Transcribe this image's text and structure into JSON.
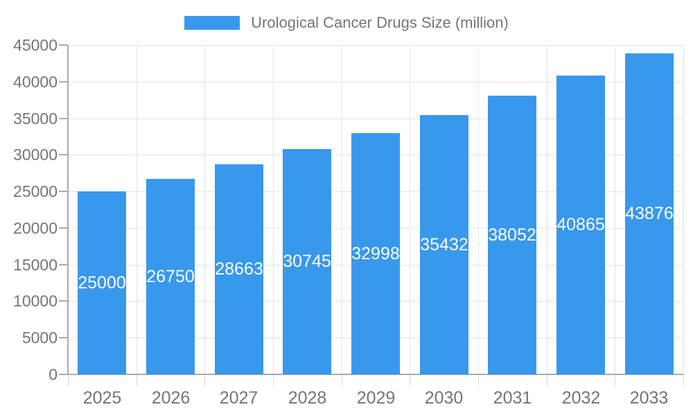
{
  "chart_data": {
    "type": "bar",
    "title": "Urological Cancer Drugs Size (million)",
    "legend_position": "top",
    "categories": [
      "2025",
      "2026",
      "2027",
      "2028",
      "2029",
      "2030",
      "2031",
      "2032",
      "2033"
    ],
    "series": [
      {
        "name": "Urological Cancer Drugs Size (million)",
        "values": [
          25000,
          26750,
          28663,
          30745,
          32998,
          35432,
          38052,
          40865,
          43876
        ]
      }
    ],
    "value_labels": [
      "25000",
      "26750",
      "28663",
      "30745",
      "32998",
      "35432",
      "38052",
      "40865",
      "43876"
    ],
    "xlabel": "",
    "ylabel": "",
    "ylim": [
      0,
      45000
    ],
    "ytick_step": 5000,
    "ytick_labels": [
      "0",
      "5000",
      "10000",
      "15000",
      "20000",
      "25000",
      "30000",
      "35000",
      "40000",
      "45000"
    ],
    "grid": {
      "horizontal": true,
      "vertical": true
    },
    "colors": {
      "bar": "#3898EC",
      "value_label": "#FFFFFF",
      "axis_text": "#757575",
      "legend_text": "#757575",
      "gridline": "#E3E3E3",
      "axis_line": "#ABABAB",
      "minor_tick": "#D9D9D9",
      "background": "#FFFFFF"
    }
  }
}
